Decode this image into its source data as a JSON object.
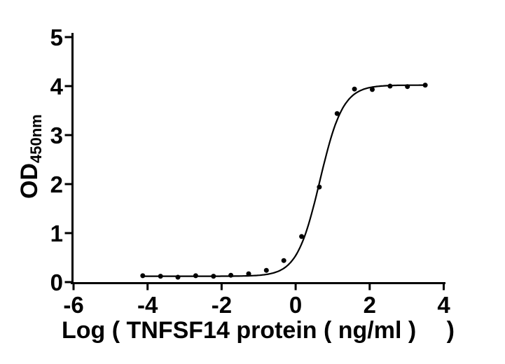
{
  "chart_data": {
    "type": "scatter",
    "title": "",
    "xlabel": "Log ( TNFSF14 protein ( ng/ml )  )",
    "ylabel_main": "OD",
    "ylabel_sub": "450nm",
    "xlim": [
      -6,
      4
    ],
    "ylim": [
      0,
      5
    ],
    "xticks": [
      -6,
      -4,
      -2,
      0,
      2,
      4
    ],
    "yticks": [
      0,
      1,
      2,
      3,
      4,
      5
    ],
    "grid": false,
    "legend": false,
    "axis_color": "#000000",
    "background_color": "#ffffff",
    "series": [
      {
        "marker": "filled-circle",
        "color": "#000000",
        "points": [
          {
            "x": -4.13,
            "y": 0.13
          },
          {
            "x": -3.65,
            "y": 0.12
          },
          {
            "x": -3.18,
            "y": 0.1
          },
          {
            "x": -2.7,
            "y": 0.13
          },
          {
            "x": -2.22,
            "y": 0.12
          },
          {
            "x": -1.75,
            "y": 0.14
          },
          {
            "x": -1.27,
            "y": 0.17
          },
          {
            "x": -0.79,
            "y": 0.24
          },
          {
            "x": -0.32,
            "y": 0.44
          },
          {
            "x": 0.16,
            "y": 0.93
          },
          {
            "x": 0.64,
            "y": 1.94
          },
          {
            "x": 1.12,
            "y": 3.44
          },
          {
            "x": 1.59,
            "y": 3.94
          },
          {
            "x": 2.07,
            "y": 3.93
          },
          {
            "x": 2.55,
            "y": 4.0
          },
          {
            "x": 3.02,
            "y": 3.99
          },
          {
            "x": 3.5,
            "y": 4.02
          }
        ]
      }
    ],
    "fit_curve": {
      "model": "4PL",
      "bottom": 0.12,
      "top": 4.02,
      "logEC50": 0.655,
      "hillslope": 1.4,
      "x_start": -4.13,
      "x_end": 3.5,
      "color": "#000000"
    }
  }
}
